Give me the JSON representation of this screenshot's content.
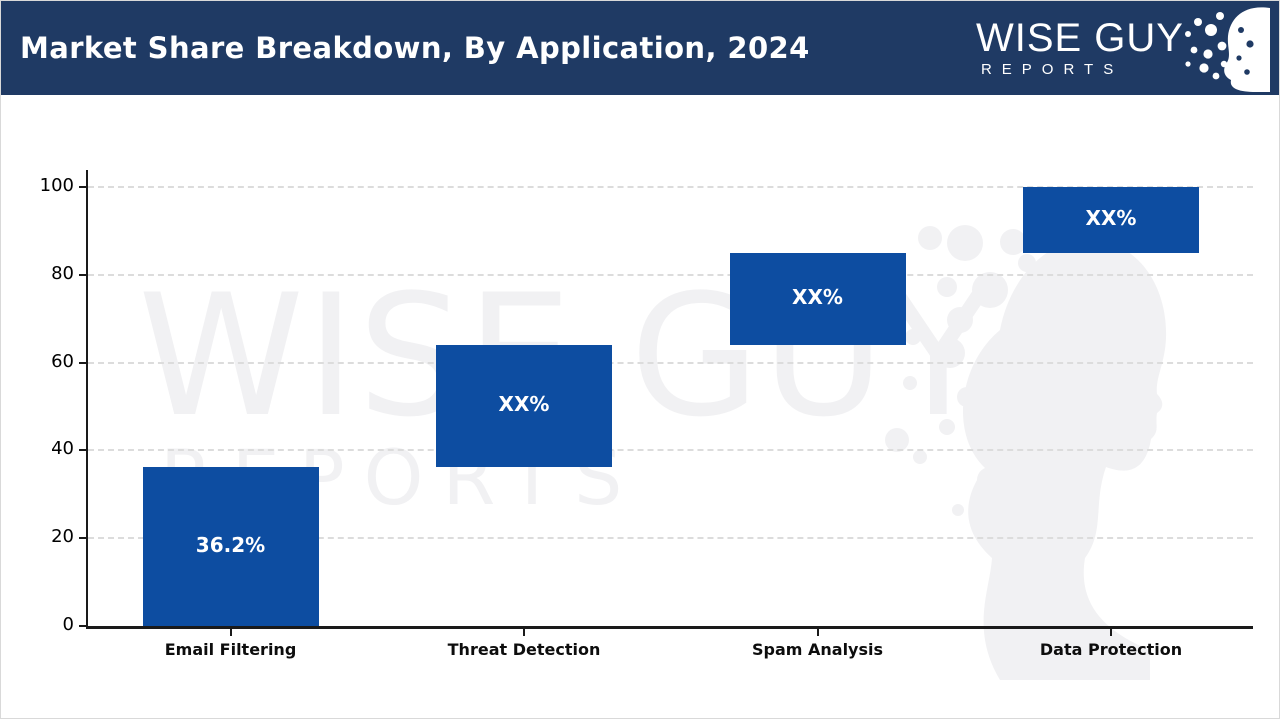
{
  "header": {
    "title": "Market Share Breakdown, By Application, 2024",
    "logo": {
      "line1": "WISE GUY",
      "line2": "REPORTS"
    }
  },
  "watermark": {
    "line1": "WISE GUY",
    "line2": "REPORTS"
  },
  "colors": {
    "header_bg": "#1f3a64",
    "bar": "#0d4da1",
    "bar_label": "#ffffff",
    "grid": "#dcdcdc",
    "axis": "#1a1a1a",
    "watermark": "#f1f1f3",
    "frame_border": "#d9d9d9"
  },
  "icons": {
    "brand_head": "wise-guy-head-icon",
    "watermark_head": "wise-guy-head-icon"
  },
  "chart_data": {
    "type": "bar",
    "subtype": "waterfall",
    "title": "Market Share Breakdown, By Application, 2024",
    "categories": [
      "Email Filtering",
      "Threat Detection",
      "Spam Analysis",
      "Data Protection"
    ],
    "bars": [
      {
        "category": "Email Filtering",
        "start": 0,
        "end": 36.2,
        "label": "36.2%"
      },
      {
        "category": "Threat Detection",
        "start": 36.2,
        "end": 64,
        "label": "XX%"
      },
      {
        "category": "Spam Analysis",
        "start": 64,
        "end": 85,
        "label": "XX%"
      },
      {
        "category": "Data Protection",
        "start": 85,
        "end": 100,
        "label": "XX%"
      }
    ],
    "xlabel": "",
    "ylabel": "",
    "ylim": [
      0,
      100
    ],
    "yticks": [
      0,
      20,
      40,
      60,
      80,
      100
    ],
    "grid": "horizontal-dashed",
    "legend": "none",
    "bar_color": "#0d4da1",
    "bar_label_color": "#ffffff"
  }
}
